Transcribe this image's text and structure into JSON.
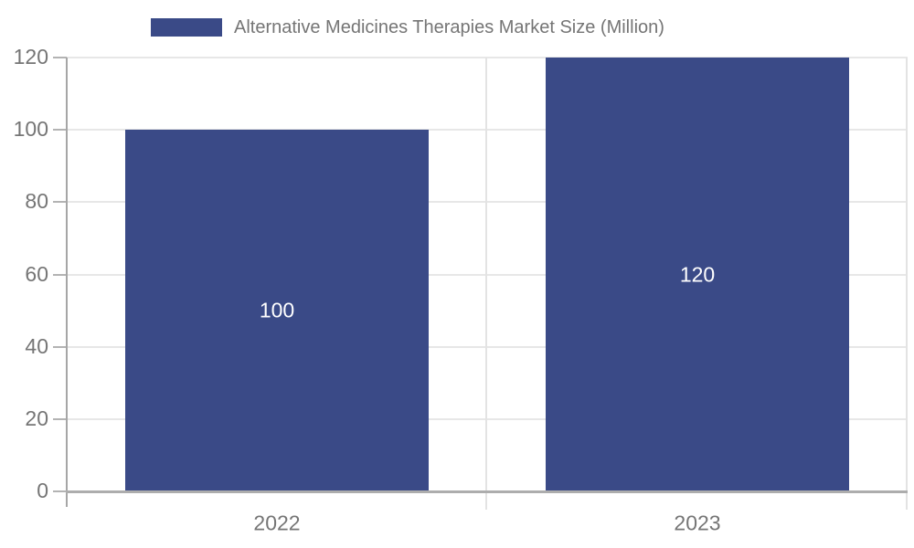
{
  "chart_data": {
    "type": "bar",
    "title": "Alternative Medicines Therapies Market Size (Million)",
    "categories": [
      "2022",
      "2023"
    ],
    "values": [
      100,
      120
    ],
    "value_labels": [
      "100",
      "120"
    ],
    "xlabel": "",
    "ylabel": "",
    "ylim": [
      0,
      120
    ],
    "yticks": [
      0,
      20,
      40,
      60,
      80,
      100,
      120
    ],
    "grid": true,
    "legend": {
      "position": "top-center",
      "entries": [
        "Alternative Medicines Therapies Market Size (Million)"
      ]
    },
    "colors": {
      "bar": "#3A4A87",
      "value_label": "#FFFFFF",
      "tick_label": "#757575",
      "legend_label": "#757575",
      "axis_line": "#A6A6A6",
      "baseline": "#ADADAD",
      "gridline": "#E7E7E7",
      "boundary_line": "#E3E3E3",
      "y_tick_mark": "#B3B3B3",
      "background": "#FFFFFF"
    }
  }
}
